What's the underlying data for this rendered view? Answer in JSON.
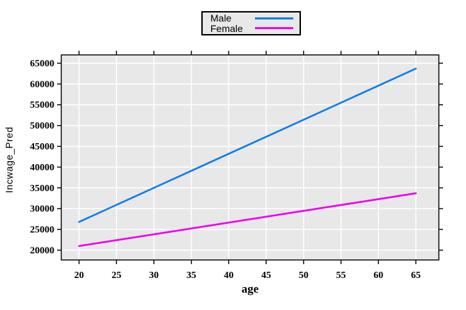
{
  "chart_data": {
    "type": "line",
    "title": "",
    "xlabel": "age",
    "ylabel": "Incwage_Pred",
    "x": [
      20,
      65
    ],
    "series": [
      {
        "name": "Male",
        "color": "#0d7ee8",
        "values": [
          26800,
          63700
        ]
      },
      {
        "name": "Female",
        "color": "#ee00ee",
        "values": [
          21000,
          33700
        ]
      }
    ],
    "xticks": [
      20,
      25,
      30,
      35,
      40,
      45,
      50,
      55,
      60,
      65
    ],
    "yticks": [
      20000,
      25000,
      30000,
      35000,
      40000,
      45000,
      50000,
      55000,
      60000,
      65000
    ],
    "xlim": [
      17.63,
      68.07
    ],
    "ylim": [
      17650,
      67000
    ],
    "grid": true,
    "legend_position": "top-center",
    "panel_bg": "#e8e8e8",
    "grid_color": "#ffffff",
    "frame_color": "#000000",
    "tick_label_color": "#000000"
  },
  "legend": {
    "entries": [
      {
        "label": "Male"
      },
      {
        "label": "Female"
      }
    ]
  }
}
